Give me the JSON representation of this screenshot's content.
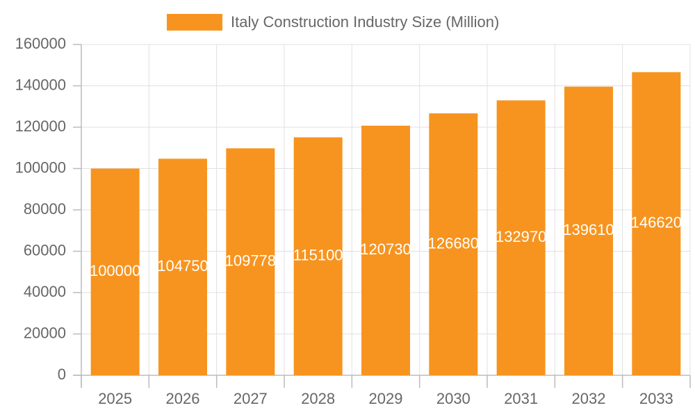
{
  "chart_data": {
    "type": "bar",
    "categories": [
      "2025",
      "2026",
      "2027",
      "2028",
      "2029",
      "2030",
      "2031",
      "2032",
      "2033"
    ],
    "series": [
      {
        "name": "Italy Construction Industry Size (Million)",
        "color": "#f7941f",
        "values": [
          100000,
          104750,
          109778,
          115100,
          120730,
          126680,
          132970,
          139610,
          146620
        ]
      }
    ],
    "ylim": [
      0,
      160000
    ],
    "yticks": [
      0,
      20000,
      40000,
      60000,
      80000,
      100000,
      120000,
      140000,
      160000
    ],
    "grid": true,
    "legend": "top"
  }
}
